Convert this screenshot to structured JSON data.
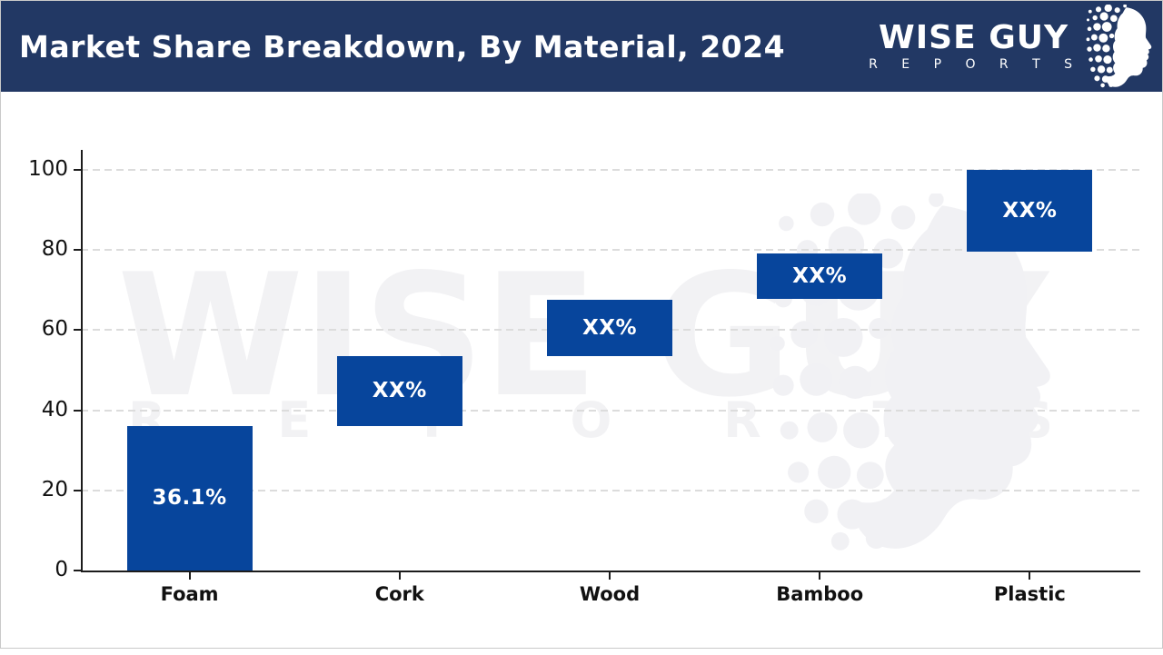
{
  "header": {
    "title": "Market Share Breakdown, By Material, 2024",
    "logo": {
      "line1": "WISE GUY",
      "line2": "R E P O R T S",
      "icon": "head-of-dots-icon"
    },
    "background": "#223864"
  },
  "watermark": {
    "line1": "WISE GUY",
    "line2": "R E P O R T S",
    "icon": "head-of-dots-watermark",
    "color": "#f2f2f4"
  },
  "chart_data": {
    "type": "bar",
    "subtype": "waterfall",
    "title": "Market Share Breakdown, By Material, 2024",
    "categories": [
      "Foam",
      "Cork",
      "Wood",
      "Bamboo",
      "Plastic"
    ],
    "segments": [
      {
        "category": "Foam",
        "start": 0,
        "end": 36.1,
        "label": "36.1%"
      },
      {
        "category": "Cork",
        "start": 36.1,
        "end": 53.5,
        "label": "XX%"
      },
      {
        "category": "Wood",
        "start": 53.6,
        "end": 67.5,
        "label": "XX%"
      },
      {
        "category": "Bamboo",
        "start": 67.8,
        "end": 79.1,
        "label": "XX%"
      },
      {
        "category": "Plastic",
        "start": 79.6,
        "end": 100,
        "label": "XX%"
      }
    ],
    "yticks": [
      0,
      20,
      40,
      60,
      80,
      100
    ],
    "ylim": [
      0,
      105
    ],
    "xlabel": "",
    "ylabel": "",
    "grid": "horizontal-dashed",
    "legend": "none",
    "bar_color": "#07459c",
    "bar_label_color": "#ffffff"
  }
}
